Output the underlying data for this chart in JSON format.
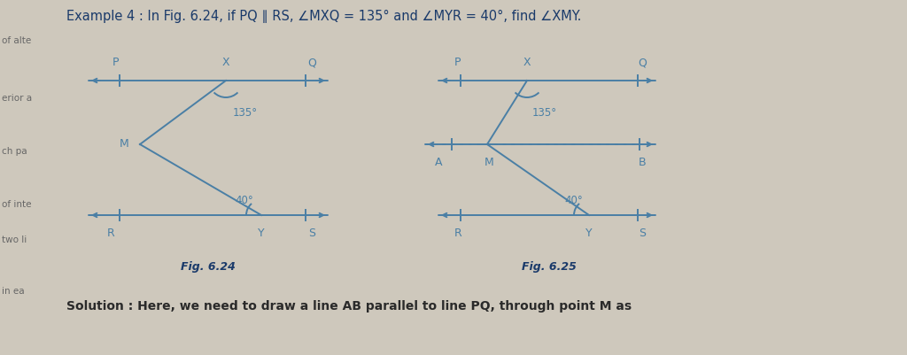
{
  "bg_color": "#cec8bc",
  "line_color": "#4a7fa5",
  "text_color": "#4a7fa5",
  "dark_text": "#2a2a2a",
  "title_color": "#1a3a6a",
  "title_text": "Example 4 : In Fig. 6.24, if PQ ∥ RS, ∠MXQ = 135° and ∠MYR = 40°, find ∠XMY.",
  "fig1_label": "Fig. 6.24",
  "fig2_label": "Fig. 6.25",
  "solution_text": "Solution : Here, we need to draw a line AB parallel to line PQ, through point M as",
  "angle1": "135°",
  "angle2": "40°",
  "lw": 1.4
}
